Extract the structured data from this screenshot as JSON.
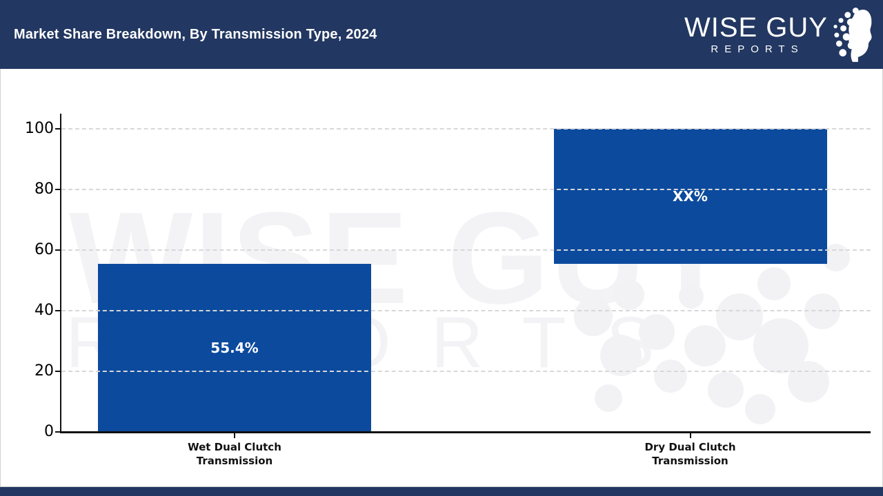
{
  "header": {
    "title": "Market Share Breakdown, By Transmission Type, 2024",
    "logo": {
      "name": "WISE GUY",
      "sub": "REPORTS"
    }
  },
  "watermark": {
    "line1": "WISE GUY",
    "line2": "REPORTS"
  },
  "colors": {
    "header_bg": "#223761",
    "footer_bg": "#223761",
    "bar": "#0c4a9e",
    "grid": "#d7d7d7"
  },
  "chart_data": {
    "type": "bar",
    "title": "Market Share Breakdown, By Transmission Type, 2024",
    "categories": [
      "Wet Dual Clutch Transmission",
      "Dry Dual Clutch Transmission"
    ],
    "category_lines": [
      [
        "Wet Dual Clutch",
        "Transmission"
      ],
      [
        "Dry Dual Clutch",
        "Transmission"
      ]
    ],
    "series": [
      {
        "name": "Wet Dual Clutch Transmission",
        "segment": [
          0,
          55.4
        ],
        "value": 55.4,
        "label": "55.4%"
      },
      {
        "name": "Dry Dual Clutch Transmission",
        "segment": [
          55.4,
          100
        ],
        "value": 44.6,
        "label": "XX%"
      }
    ],
    "bar_labels": [
      "55.4%",
      "XX%"
    ],
    "xlabel": "",
    "ylabel": "",
    "yticks": [
      0,
      20,
      40,
      60,
      80,
      100
    ],
    "ylim": [
      0,
      105
    ],
    "grid": "horizontal-dashed",
    "legend": "none",
    "bar_color": "#0c4a9e",
    "style": "second bar floats from top of first bar (stacked breakdown)"
  }
}
